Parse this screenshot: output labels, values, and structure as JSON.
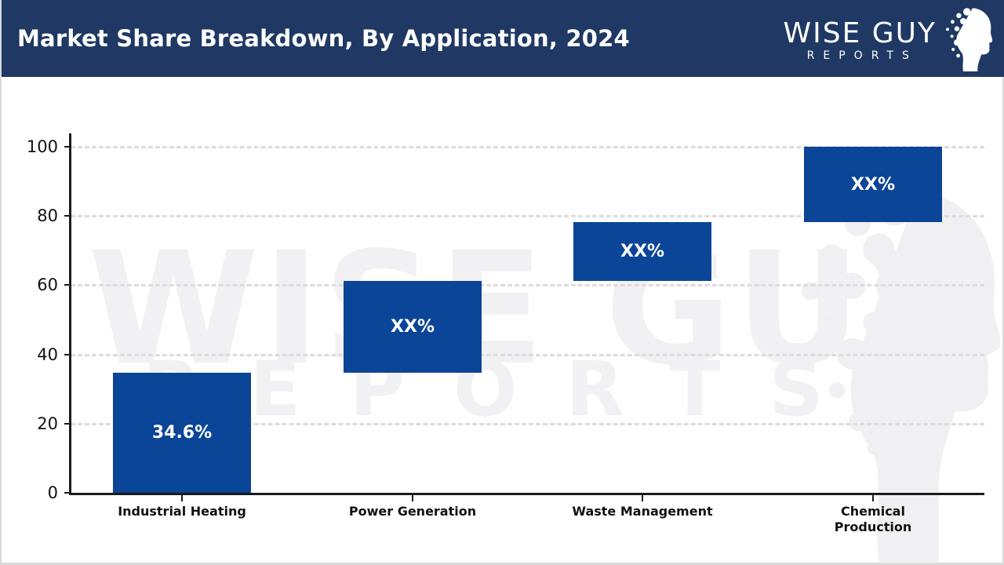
{
  "header": {
    "title": "Market Share Breakdown, By Application, 2024",
    "bg_color": "#1f3864",
    "logo": {
      "line1": "WISE GUY",
      "line2": "REPORTS"
    }
  },
  "watermark": {
    "line1": "WISE GUY",
    "line2": "REPORTS"
  },
  "chart_data": {
    "type": "bar",
    "subtype": "floating-waterfall",
    "title": "Market Share Breakdown, By Application, 2024",
    "categories": [
      "Industrial Heating",
      "Power Generation",
      "Waste Management",
      "Chemical Production"
    ],
    "tick_labels": [
      "Industrial Heating",
      "Power Generation",
      "Waste Management",
      "Chemical\nProduction"
    ],
    "series": [
      {
        "name": "Market Share (%)",
        "segments": [
          {
            "category": "Industrial Heating",
            "start": 0,
            "end": 34.6,
            "label": "34.6%"
          },
          {
            "category": "Power Generation",
            "start": 34.6,
            "end": 61.2,
            "label": "XX%"
          },
          {
            "category": "Waste Management",
            "start": 61.2,
            "end": 78.2,
            "label": "XX%"
          },
          {
            "category": "Chemical Production",
            "start": 78.2,
            "end": 100,
            "label": "XX%"
          }
        ]
      }
    ],
    "bar_labels": [
      "34.6%",
      "XX%",
      "XX%",
      "XX%"
    ],
    "yticks": [
      0,
      20,
      40,
      60,
      80,
      100
    ],
    "ylim": [
      0,
      104
    ],
    "xlabel": "",
    "ylabel": "",
    "bar_color": "#0b4598",
    "axis_color": "#1a1a1a",
    "grid_color": "#dcdcdc",
    "grid": "horizontal-dashed",
    "legend": "none"
  }
}
